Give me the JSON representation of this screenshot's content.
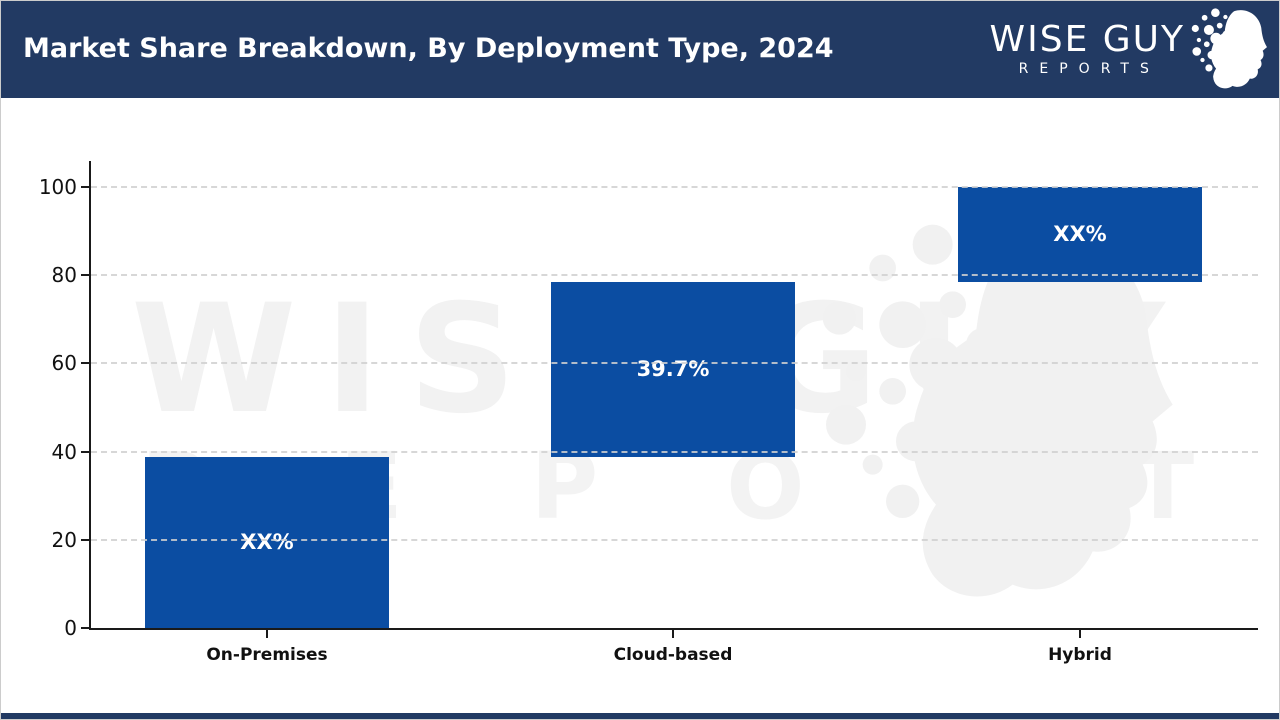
{
  "header": {
    "title": "Market Share Breakdown, By Deployment Type, 2024",
    "bg_color": "#223A63",
    "logo": {
      "line1": "WISE GUY",
      "line2": "REPORTS"
    }
  },
  "watermark": {
    "line1": "WISE GUY",
    "line2": "R E P O R T S"
  },
  "chart_data": {
    "type": "bar",
    "subtype": "floating-segment bars (stacked market-share breakdown, one segment per category)",
    "title": "Market Share Breakdown, By Deployment Type, 2024",
    "categories": [
      "On-Premises",
      "Cloud-based",
      "Hybrid"
    ],
    "segments": [
      {
        "category": "On-Premises",
        "start": 0,
        "end": 38.8,
        "label": "XX%"
      },
      {
        "category": "Cloud-based",
        "start": 38.8,
        "end": 78.5,
        "label": "39.7%"
      },
      {
        "category": "Hybrid",
        "start": 78.5,
        "end": 100,
        "label": "XX%"
      }
    ],
    "y_ticks": [
      0,
      20,
      40,
      60,
      80,
      100
    ],
    "ylim": [
      0,
      100
    ],
    "xlabel": "",
    "ylabel": "",
    "grid": "horizontal dashed gridlines drawn above bars",
    "legend": "none",
    "bar_color": "#0B4DA2",
    "axis_color": "#1a1a1a",
    "label_color_inside_bars": "#ffffff"
  }
}
